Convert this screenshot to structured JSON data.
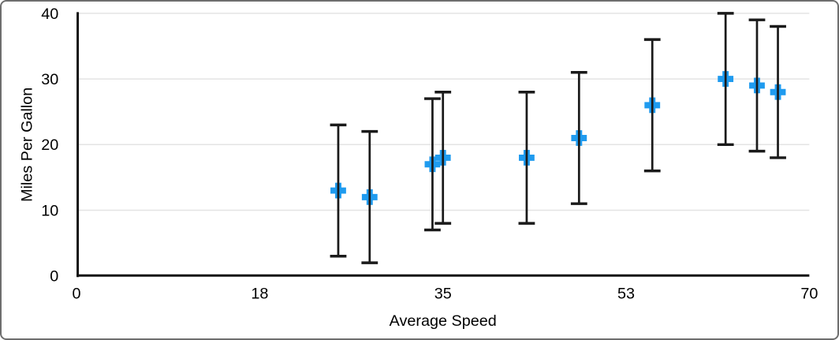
{
  "chart_data": {
    "type": "scatter",
    "title": "",
    "xlabel": "Average Speed",
    "ylabel": "Miles Per Gallon",
    "grid": "horizontal",
    "legend": "none",
    "x_axis": {
      "min": 0,
      "max": 70,
      "ticks": [
        {
          "value": 0,
          "label": "0"
        },
        {
          "value": 17.5,
          "label": "18"
        },
        {
          "value": 35,
          "label": "35"
        },
        {
          "value": 52.5,
          "label": "53"
        },
        {
          "value": 70,
          "label": "70"
        }
      ]
    },
    "y_axis": {
      "min": 0,
      "max": 40,
      "ticks": [
        {
          "value": 0,
          "label": "0"
        },
        {
          "value": 10,
          "label": "10"
        },
        {
          "value": 20,
          "label": "20"
        },
        {
          "value": 30,
          "label": "30"
        },
        {
          "value": 40,
          "label": "40"
        }
      ]
    },
    "points": [
      {
        "x": 25,
        "y": 13,
        "error_plus": 10,
        "error_minus": 10
      },
      {
        "x": 28,
        "y": 12,
        "error_plus": 10,
        "error_minus": 10
      },
      {
        "x": 34,
        "y": 17,
        "error_plus": 10,
        "error_minus": 10
      },
      {
        "x": 35,
        "y": 18,
        "error_plus": 10,
        "error_minus": 10
      },
      {
        "x": 43,
        "y": 18,
        "error_plus": 10,
        "error_minus": 10
      },
      {
        "x": 48,
        "y": 21,
        "error_plus": 10,
        "error_minus": 10
      },
      {
        "x": 55,
        "y": 26,
        "error_plus": 10,
        "error_minus": 10
      },
      {
        "x": 62,
        "y": 30,
        "error_plus": 10,
        "error_minus": 10
      },
      {
        "x": 65,
        "y": 29,
        "error_plus": 10,
        "error_minus": 10
      },
      {
        "x": 67,
        "y": 28,
        "error_plus": 10,
        "error_minus": 10
      }
    ],
    "colors": {
      "marker": "#1F9BEF",
      "error_bar": "#1a1a1a",
      "axis": "#111111",
      "gridline": "#e4e4e4",
      "text": "#000000",
      "frame_border": "#6e6e6e",
      "background": "#ffffff"
    }
  }
}
